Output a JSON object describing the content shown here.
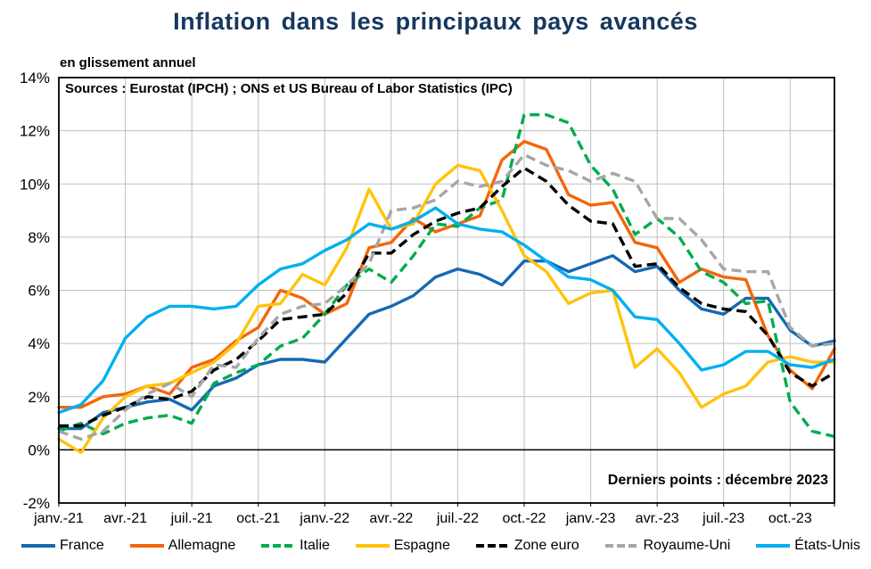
{
  "title": "Inflation dans les principaux pays avancés",
  "subtitle": "en glissement annuel",
  "sources_note": "Sources : Eurostat (IPCH) ; ONS et US Bureau of Labor Statistics (IPC)",
  "last_points_note": "Derniers points : décembre 2023",
  "colors": {
    "title_text": "#17375E",
    "grid": "#BFBFBF",
    "axis": "#000000",
    "background": "#FFFFFF"
  },
  "chart_data": {
    "type": "line",
    "title": "Inflation dans les principaux pays avancés",
    "subtitle": "en glissement annuel",
    "x_start": "janv.-21",
    "x_end": "déc.-23",
    "n_points": 36,
    "x_tick_labels": [
      "janv.-21",
      "avr.-21",
      "juil.-21",
      "oct.-21",
      "janv.-22",
      "avr.-22",
      "juil.-22",
      "oct.-22",
      "janv.-23",
      "avr.-23",
      "juil.-23",
      "oct.-23"
    ],
    "x_tick_month_indices": [
      0,
      3,
      6,
      9,
      12,
      15,
      18,
      21,
      24,
      27,
      30,
      33
    ],
    "ylim": [
      -2,
      14
    ],
    "y_tick_step": 2,
    "y_tick_labels_top_to_bottom": [
      "14%",
      "12%",
      "10%",
      "8%",
      "6%",
      "4%",
      "2%",
      "0%",
      "-2%"
    ],
    "grid": true,
    "legend_position": "bottom",
    "series": [
      {
        "name": "France",
        "key": "france",
        "color": "#1669B2",
        "dash": "solid",
        "values": [
          0.8,
          0.8,
          1.4,
          1.6,
          1.8,
          1.9,
          1.5,
          2.4,
          2.7,
          3.2,
          3.4,
          3.4,
          3.3,
          4.2,
          5.1,
          5.4,
          5.8,
          6.5,
          6.8,
          6.6,
          6.2,
          7.1,
          7.1,
          6.7,
          7.0,
          7.3,
          6.7,
          6.9,
          6.0,
          5.3,
          5.1,
          5.7,
          5.7,
          4.5,
          3.9,
          4.1
        ]
      },
      {
        "name": "Allemagne",
        "key": "allemagne",
        "color": "#F4660B",
        "dash": "solid",
        "values": [
          1.6,
          1.6,
          2.0,
          2.1,
          2.4,
          2.1,
          3.1,
          3.4,
          4.1,
          4.6,
          6.0,
          5.7,
          5.1,
          5.5,
          7.6,
          7.8,
          8.7,
          8.2,
          8.5,
          8.8,
          10.9,
          11.6,
          11.3,
          9.6,
          9.2,
          9.3,
          7.8,
          7.6,
          6.3,
          6.8,
          6.5,
          6.4,
          4.3,
          3.0,
          2.3,
          3.8
        ]
      },
      {
        "name": "Italie",
        "key": "italie",
        "color": "#00AC4D",
        "dash": "dash",
        "values": [
          0.7,
          1.0,
          0.6,
          1.0,
          1.2,
          1.3,
          1.0,
          2.5,
          2.9,
          3.2,
          3.9,
          4.2,
          5.1,
          6.2,
          6.8,
          6.3,
          7.3,
          8.5,
          8.4,
          9.1,
          9.4,
          12.6,
          12.6,
          12.3,
          10.7,
          9.8,
          8.1,
          8.7,
          8.0,
          6.7,
          6.3,
          5.5,
          5.6,
          1.8,
          0.7,
          0.5
        ]
      },
      {
        "name": "Espagne",
        "key": "espagne",
        "color": "#FFC30B",
        "dash": "solid",
        "values": [
          0.4,
          -0.1,
          1.2,
          2.0,
          2.4,
          2.5,
          2.9,
          3.3,
          4.0,
          5.4,
          5.5,
          6.6,
          6.2,
          7.6,
          9.8,
          8.3,
          8.5,
          10.0,
          10.7,
          10.5,
          9.0,
          7.3,
          6.7,
          5.5,
          5.9,
          6.0,
          3.1,
          3.8,
          2.9,
          1.6,
          2.1,
          2.4,
          3.3,
          3.5,
          3.3,
          3.3
        ]
      },
      {
        "name": "Zone euro",
        "key": "zone-euro",
        "color": "#000000",
        "dash": "dash",
        "values": [
          0.9,
          0.9,
          1.3,
          1.6,
          2.0,
          1.9,
          2.2,
          3.0,
          3.4,
          4.1,
          4.9,
          5.0,
          5.1,
          5.9,
          7.4,
          7.4,
          8.1,
          8.6,
          8.9,
          9.1,
          9.9,
          10.6,
          10.1,
          9.2,
          8.6,
          8.5,
          6.9,
          7.0,
          6.1,
          5.5,
          5.3,
          5.2,
          4.3,
          2.9,
          2.4,
          2.9
        ]
      },
      {
        "name": "Royaume-Uni",
        "key": "royaume-uni",
        "color": "#A6A6A6",
        "dash": "dash",
        "values": [
          0.7,
          0.4,
          0.7,
          1.5,
          2.1,
          2.5,
          2.0,
          3.2,
          3.1,
          4.2,
          5.1,
          5.4,
          5.5,
          6.2,
          7.0,
          9.0,
          9.1,
          9.4,
          10.1,
          9.9,
          10.1,
          11.1,
          10.7,
          10.5,
          10.1,
          10.4,
          10.1,
          8.7,
          8.7,
          7.9,
          6.8,
          6.7,
          6.7,
          4.6,
          3.9,
          4.0
        ]
      },
      {
        "name": "États-Unis",
        "key": "etats-unis",
        "color": "#00B0F0",
        "dash": "solid",
        "values": [
          1.4,
          1.7,
          2.6,
          4.2,
          5.0,
          5.4,
          5.4,
          5.3,
          5.4,
          6.2,
          6.8,
          7.0,
          7.5,
          7.9,
          8.5,
          8.3,
          8.6,
          9.1,
          8.5,
          8.3,
          8.2,
          7.7,
          7.1,
          6.5,
          6.4,
          6.0,
          5.0,
          4.9,
          4.0,
          3.0,
          3.2,
          3.7,
          3.7,
          3.2,
          3.1,
          3.4
        ]
      }
    ]
  }
}
